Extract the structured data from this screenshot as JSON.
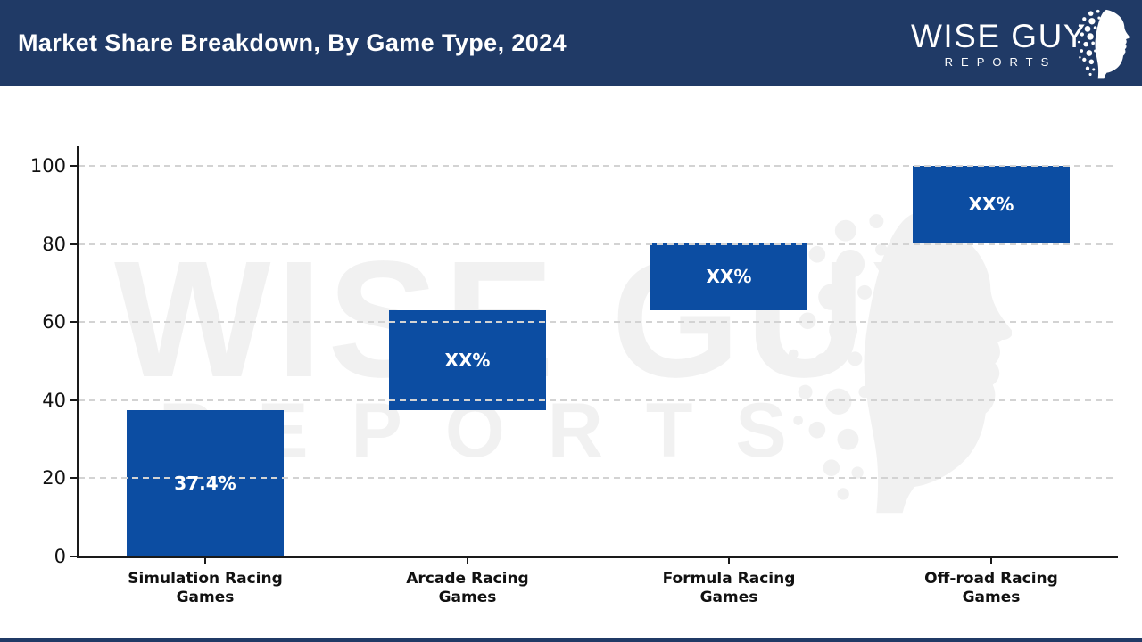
{
  "header": {
    "title": "Market Share Breakdown, By Game Type, 2024",
    "logo": {
      "brand_line1": "WISE GUY",
      "brand_line2": "REPORTS"
    }
  },
  "watermark": {
    "line1": "WISE GUY",
    "line2": "REPORTS"
  },
  "chart_data": {
    "type": "bar",
    "subtype": "waterfall-floating-bars",
    "title": "Market Share Breakdown, By Game Type, 2024",
    "categories": [
      "Simulation Racing\nGames",
      "Arcade Racing\nGames",
      "Formula Racing\nGames",
      "Off-road Racing\nGames"
    ],
    "segments": [
      [
        0,
        37.4
      ],
      [
        37.4,
        63.0
      ],
      [
        63.0,
        80.4
      ],
      [
        80.4,
        100
      ]
    ],
    "bar_labels": [
      "37.4%",
      "XX%",
      "XX%",
      "XX%"
    ],
    "yticks": [
      0,
      20,
      40,
      60,
      80,
      100
    ],
    "ylim": [
      0,
      105
    ],
    "xlabel": "",
    "ylabel": "",
    "grid": "horizontal-dashed",
    "legend": "none",
    "bar_color": "#0c4da2",
    "bar_label_color": "#ffffff"
  },
  "colors": {
    "header_bg": "#203a66",
    "footer_bg": "#203a66",
    "chart_bg": "#ffffff",
    "grid_color": "#d3d3d3",
    "axis_color": "#1a1a1a",
    "watermark_color": "#f1f1f1"
  }
}
